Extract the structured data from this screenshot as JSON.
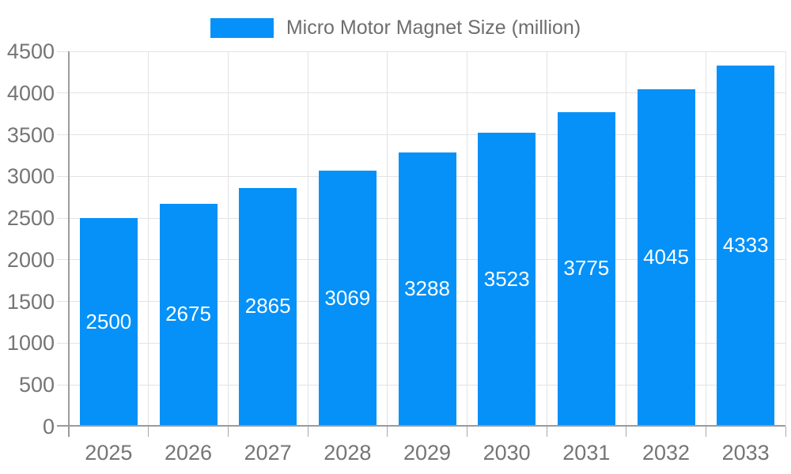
{
  "chart_data": {
    "type": "bar",
    "title": "Micro Motor Magnet Size (million)",
    "legend": {
      "label": "Micro Motor Magnet Size (million)",
      "position": "top"
    },
    "categories": [
      "2025",
      "2026",
      "2027",
      "2028",
      "2029",
      "2030",
      "2031",
      "2032",
      "2033"
    ],
    "series": [
      {
        "name": "Micro Motor Magnet Size (million)",
        "values": [
          2500,
          2675,
          2865,
          3069,
          3288,
          3523,
          3775,
          4045,
          4333
        ]
      }
    ],
    "value_labels": [
      "2500",
      "2675",
      "2865",
      "3069",
      "3288",
      "3523",
      "3775",
      "4045",
      "4333"
    ],
    "xlabel": "",
    "ylabel": "",
    "ylim": [
      0,
      4500
    ],
    "y_ticks": [
      0,
      500,
      1000,
      1500,
      2000,
      2500,
      3000,
      3500,
      4000,
      4500
    ],
    "grid": true,
    "colors": {
      "bar": "#0591f8",
      "bar_label_text": "#ffffff",
      "axis_line": "#9b9b9b",
      "gridline": "#e3e3e3",
      "axis_text": "#757575",
      "legend_text": "#6e6e6e",
      "background": "#ffffff"
    }
  }
}
